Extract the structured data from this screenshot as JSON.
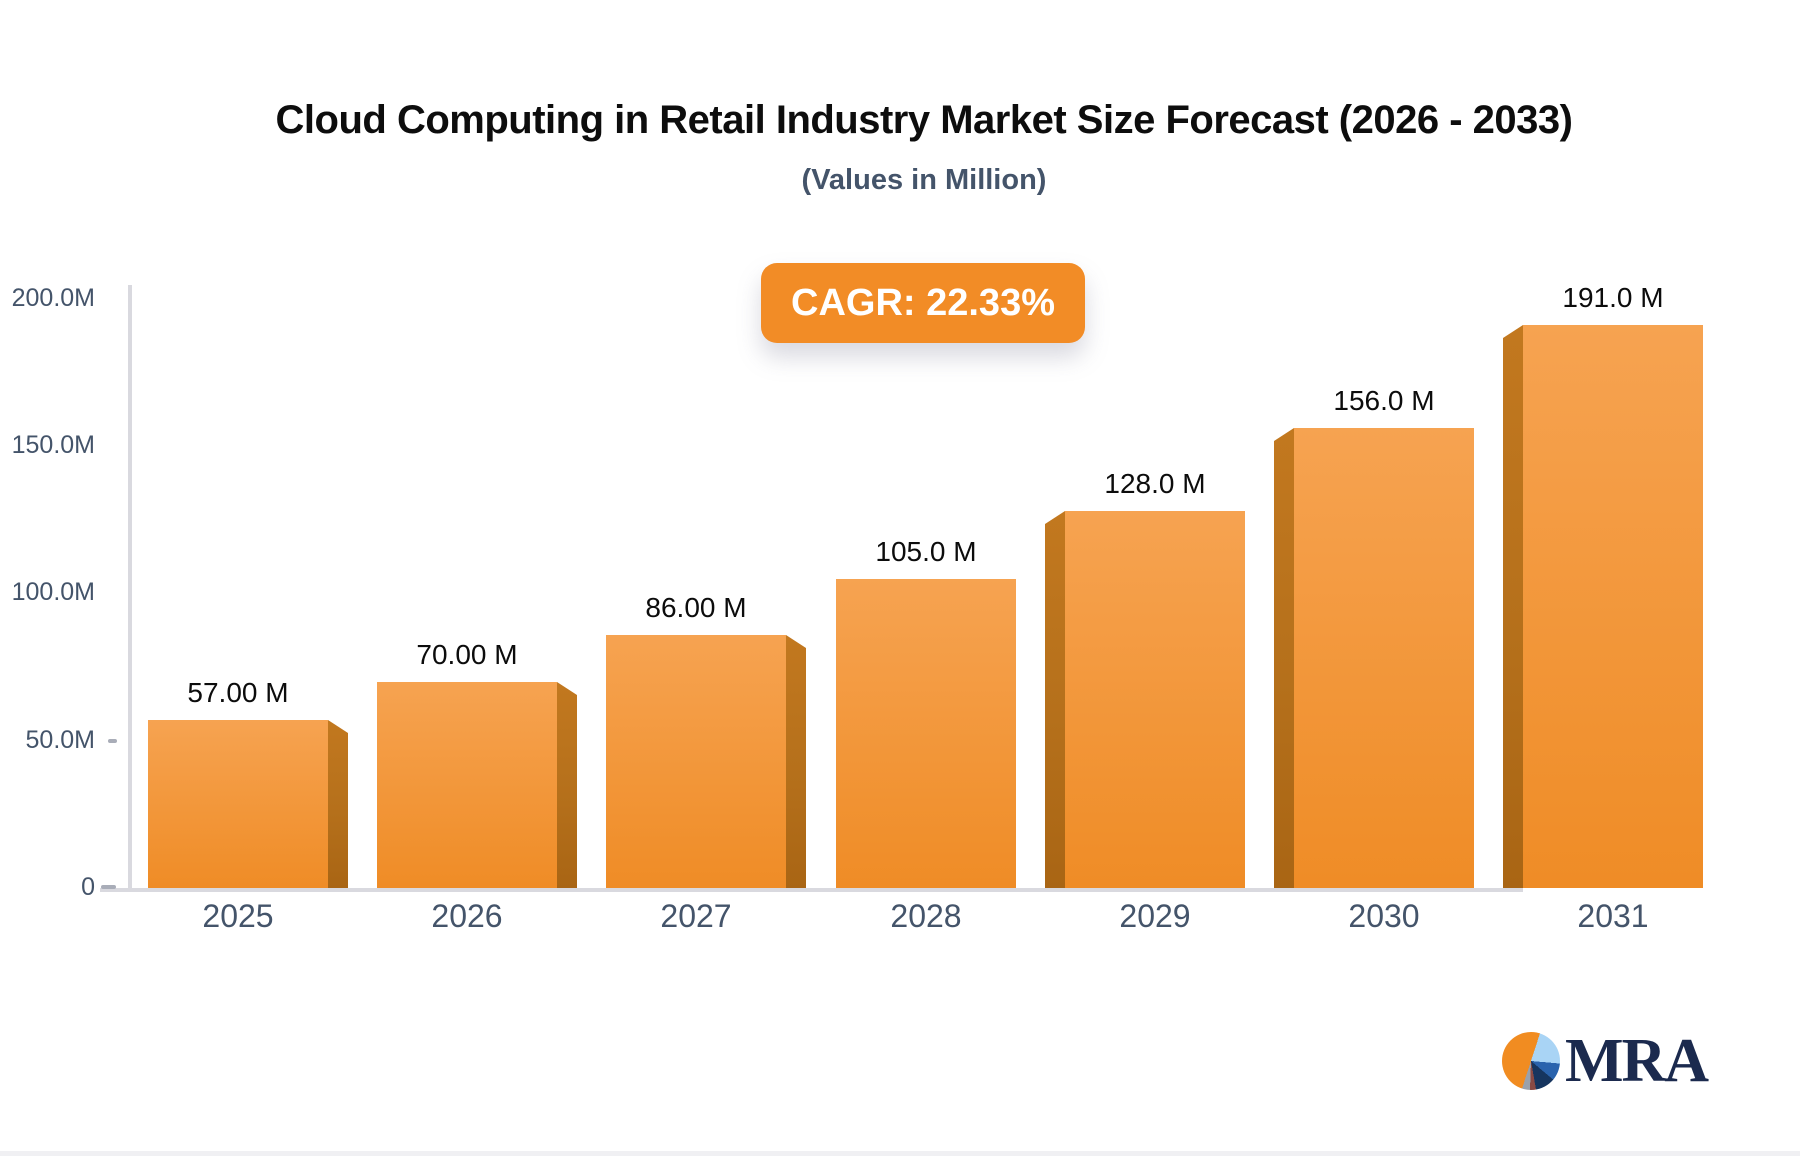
{
  "title": "Cloud Computing in Retail Industry Market Size Forecast (2026 - 2033)",
  "subtitle": "(Values in Million)",
  "badge": "CAGR: 22.33%",
  "chart_data": {
    "type": "bar",
    "title": "Cloud Computing in Retail Industry Market Size Forecast (2026 - 2033)",
    "subtitle": "(Values in Million)",
    "unit": "Million",
    "cagr_percent": 22.33,
    "categories": [
      "2025",
      "2026",
      "2027",
      "2028",
      "2029",
      "2030",
      "2031"
    ],
    "values": [
      57,
      70,
      86,
      105,
      128,
      156,
      191
    ],
    "value_labels": [
      "57.00 M",
      "70.00 M",
      "86.00 M",
      "105.0 M",
      "128.0 M",
      "156.0 M",
      "191.0 M"
    ],
    "y_axis": {
      "range": [
        0,
        200
      ],
      "ticks": [
        0,
        50,
        100,
        150,
        200
      ],
      "tick_labels": [
        "0",
        "50.0M",
        "100.0M",
        "150.0M",
        "200.0M"
      ]
    },
    "grid": false,
    "legend": null,
    "bar_style": "3d-perspective-orange"
  },
  "colors": {
    "bar_face_top": "#f6a351",
    "bar_face_bottom": "#ef8c26",
    "bar_side": "#b5701b",
    "badge_bg": "#f28c26",
    "badge_text": "#ffffff",
    "axis_line": "#d9d9df",
    "tick_label": "#44546a",
    "title": "#0d0d0d",
    "value_label": "#0c0c0c",
    "logo_navy": "#1b2a4e",
    "logo_orange": "#f18c21",
    "logo_lightblue": "#a9d4f5",
    "logo_blue": "#2a63ad",
    "logo_darkblue": "#16355f"
  },
  "logo": {
    "text": "MRA"
  }
}
